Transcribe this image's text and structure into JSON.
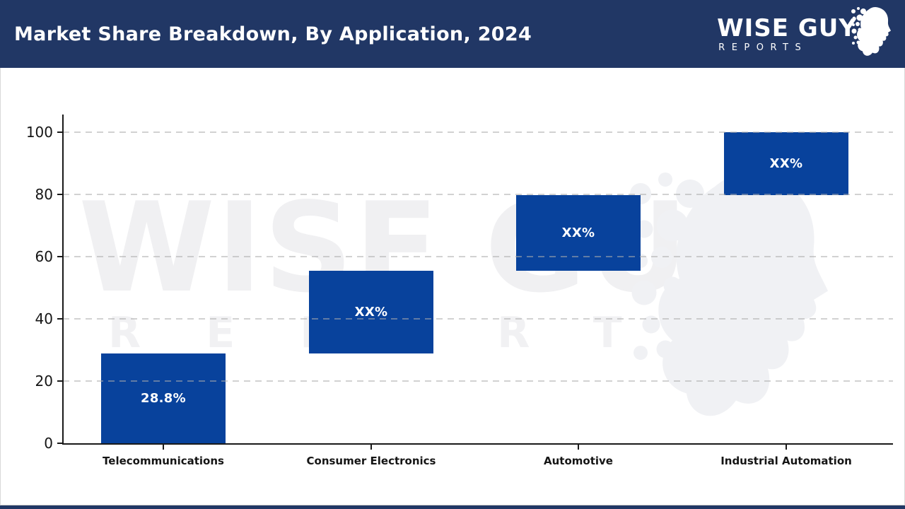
{
  "header": {
    "title": "Market Share Breakdown, By Application, 2024"
  },
  "logo": {
    "line1": "WISE GUY",
    "line2": "REPORTS",
    "head_icon": "wiseguy-head-icon"
  },
  "watermark": {
    "line1": "WISE GUY",
    "line2": "REPORTS"
  },
  "colors": {
    "header_bg": "#213765",
    "footer_bg": "#213765",
    "bar": "#08429c",
    "bar_label": "#ffffff",
    "grid": "#d8d8d8",
    "watermark": "#f0f0f2"
  },
  "chart_data": {
    "type": "bar",
    "subtype": "waterfall",
    "title": "Market Share Breakdown, By Application, 2024",
    "categories": [
      "Telecommunications",
      "Consumer Electronics",
      "Automotive",
      "Industrial Automation"
    ],
    "segments": [
      {
        "category": "Telecommunications",
        "start": 0,
        "end": 28.8,
        "label": "28.8%"
      },
      {
        "category": "Consumer Electronics",
        "start": 28.8,
        "end": 55.4,
        "label": "XX%"
      },
      {
        "category": "Automotive",
        "start": 55.4,
        "end": 79.8,
        "label": "XX%"
      },
      {
        "category": "Industrial Automation",
        "start": 79.8,
        "end": 100,
        "label": "XX%"
      }
    ],
    "xlabel": "",
    "ylabel": "",
    "ylim": [
      0,
      100
    ],
    "yticks": [
      0,
      20,
      40,
      60,
      80,
      100
    ],
    "grid": "horizontal dashed, drawn over bars",
    "legend": "none",
    "note": "Only first segment value shown; remaining values masked as XX%"
  }
}
